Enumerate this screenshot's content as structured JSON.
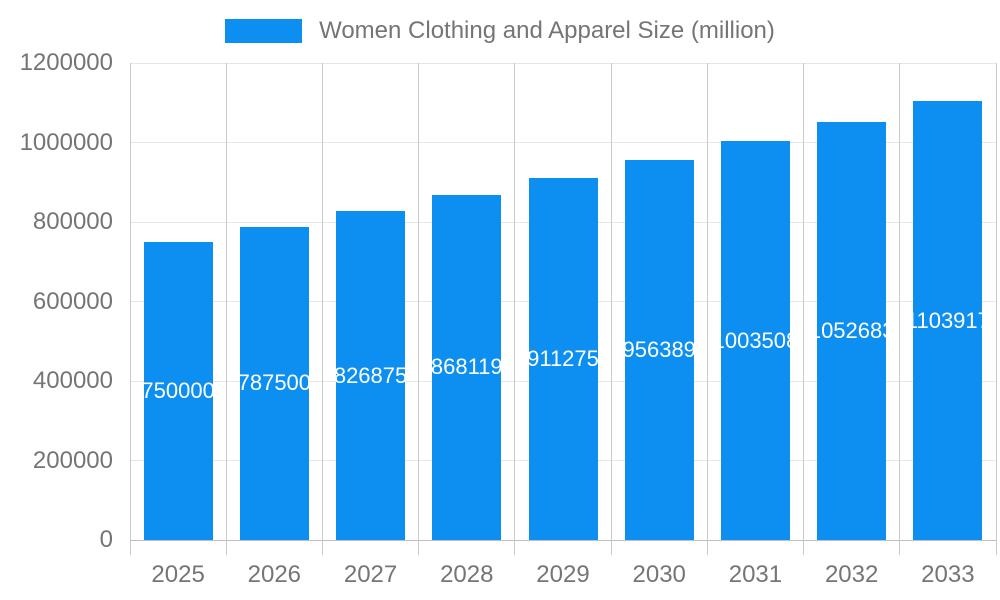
{
  "chart_data": {
    "type": "bar",
    "title": "Women Clothing and Apparel Size (million)",
    "categories": [
      "2025",
      "2026",
      "2027",
      "2028",
      "2029",
      "2030",
      "2031",
      "2032",
      "2033"
    ],
    "values": [
      750000,
      787500,
      826875,
      868119,
      911275,
      956389,
      1003508,
      1052683,
      1103917
    ],
    "y_ticks": [
      0,
      200000,
      400000,
      600000,
      800000,
      1000000,
      1200000
    ],
    "ylim": [
      0,
      1200000
    ],
    "xlabel": "",
    "ylabel": "",
    "legend_position": "top",
    "grid": true,
    "bar_color": "#0d8ff2",
    "data_label_color": "#ffffff",
    "axis_text_color": "#757575",
    "gridline_color": "#e6e6e6",
    "vertical_gridline_color": "#c9c9c9"
  }
}
